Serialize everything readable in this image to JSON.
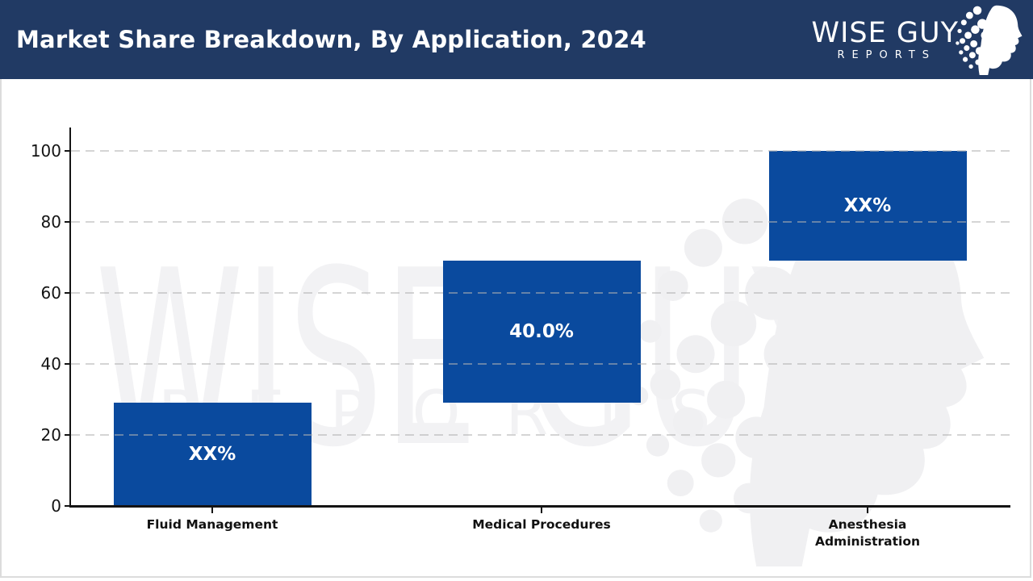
{
  "header": {
    "title": "Market Share Breakdown, By Application, 2024",
    "logo_line1": "WISE GUY",
    "logo_line2": "REPORTS"
  },
  "watermark": {
    "line1": "WISE GUY",
    "line2": "REPORTS"
  },
  "colors": {
    "header_bg": "#213a64",
    "bar": "#0a4a9e",
    "axis": "#141414",
    "grid": "#d9d9d9",
    "watermark": "#f2f2f4"
  },
  "chart_data": {
    "type": "bar",
    "subtype": "floating-waterfall",
    "title": "Market Share Breakdown, By Application, 2024",
    "xlabel": "",
    "ylabel": "",
    "ylim": [
      0,
      100
    ],
    "yticks": [
      "0",
      "20",
      "40",
      "60",
      "80",
      "100"
    ],
    "ytick_values": [
      0,
      20,
      40,
      60,
      80,
      100
    ],
    "grid": "horizontal-dashed",
    "legend": "none",
    "categories": [
      "Fluid Management",
      "Medical Procedures",
      "Anesthesia Administration"
    ],
    "bars": [
      {
        "category": "Fluid Management",
        "start": 0,
        "end": 29,
        "value": 29,
        "label": "XX%"
      },
      {
        "category": "Medical Procedures",
        "start": 29,
        "end": 69,
        "value": 40,
        "label": "40.0%"
      },
      {
        "category": "Anesthesia Administration",
        "start": 69,
        "end": 100,
        "value": 31,
        "label": "XX%"
      }
    ]
  }
}
